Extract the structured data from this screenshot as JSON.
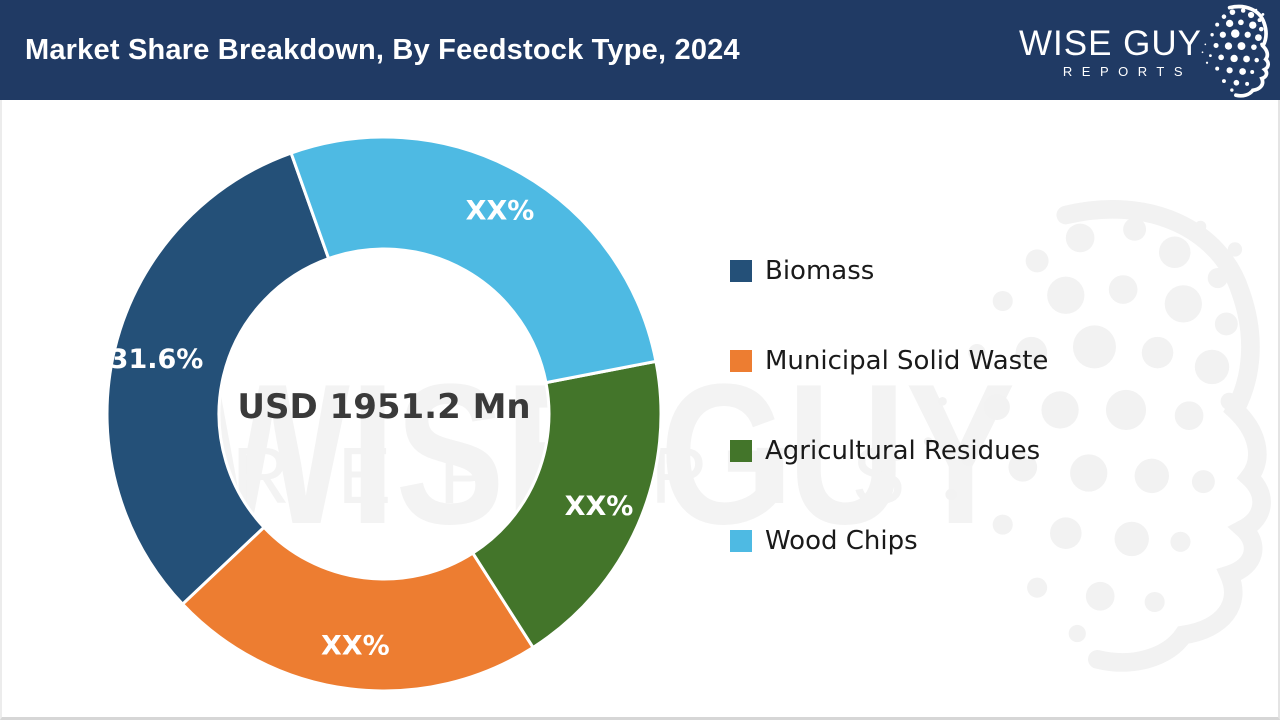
{
  "header": {
    "title": "Market Share Breakdown, By Feedstock Type, 2024",
    "bg_color": "#203A64",
    "logo": {
      "name": "WISE GUY",
      "sub": "REPORTS"
    }
  },
  "watermark": {
    "line1": "WISE GUY",
    "line2": "REPORTS"
  },
  "chart_data": {
    "type": "pie",
    "subtype": "donut",
    "title": "Market Share Breakdown, By Feedstock Type, 2024",
    "center_label": "USD 1951.2 Mn",
    "start_angle_deg": 109.6,
    "direction": "counterclockwise",
    "legend_position": "right",
    "series": [
      {
        "name": "Biomass",
        "label": "31.6%",
        "value_pct": 31.6,
        "color": "#245078"
      },
      {
        "name": "Municipal Solid Waste",
        "label": "XX%",
        "value_pct": 22.0,
        "color": "#ED7D31"
      },
      {
        "name": "Agricultural Residues",
        "label": "XX%",
        "value_pct": 19.0,
        "color": "#43752A"
      },
      {
        "name": "Wood Chips",
        "label": "XX%",
        "value_pct": 27.4,
        "color": "#4EBAE3"
      }
    ]
  }
}
